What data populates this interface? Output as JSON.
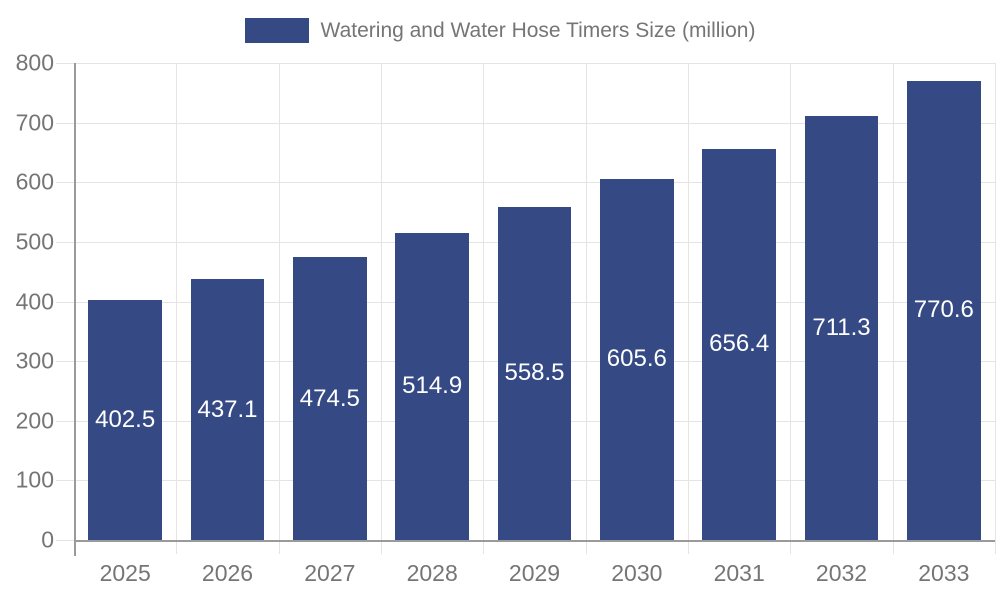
{
  "chart_data": {
    "type": "bar",
    "legend": "Watering and Water Hose Timers Size (million)",
    "categories": [
      "2025",
      "2026",
      "2027",
      "2028",
      "2029",
      "2030",
      "2031",
      "2032",
      "2033"
    ],
    "values": [
      402.5,
      437.1,
      474.5,
      514.9,
      558.5,
      605.6,
      656.4,
      711.3,
      770.6
    ],
    "value_labels": [
      "402.5",
      "437.1",
      "474.5",
      "514.9",
      "558.5",
      "605.6",
      "656.4",
      "711.3",
      "770.6"
    ],
    "ylabel": "",
    "xlabel": "",
    "ylim": [
      0,
      800
    ],
    "ytick_step": 100,
    "ytick_labels": [
      "0",
      "100",
      "200",
      "300",
      "400",
      "500",
      "600",
      "700",
      "800"
    ],
    "grid": true,
    "legend_position": "top-center",
    "colors": {
      "bar": "#354a85",
      "grid": "#e4e4e4",
      "axis_line": "#9a9a9a",
      "tick_label": "#757575",
      "value_label": "#ffffff",
      "background": "#ffffff"
    }
  }
}
